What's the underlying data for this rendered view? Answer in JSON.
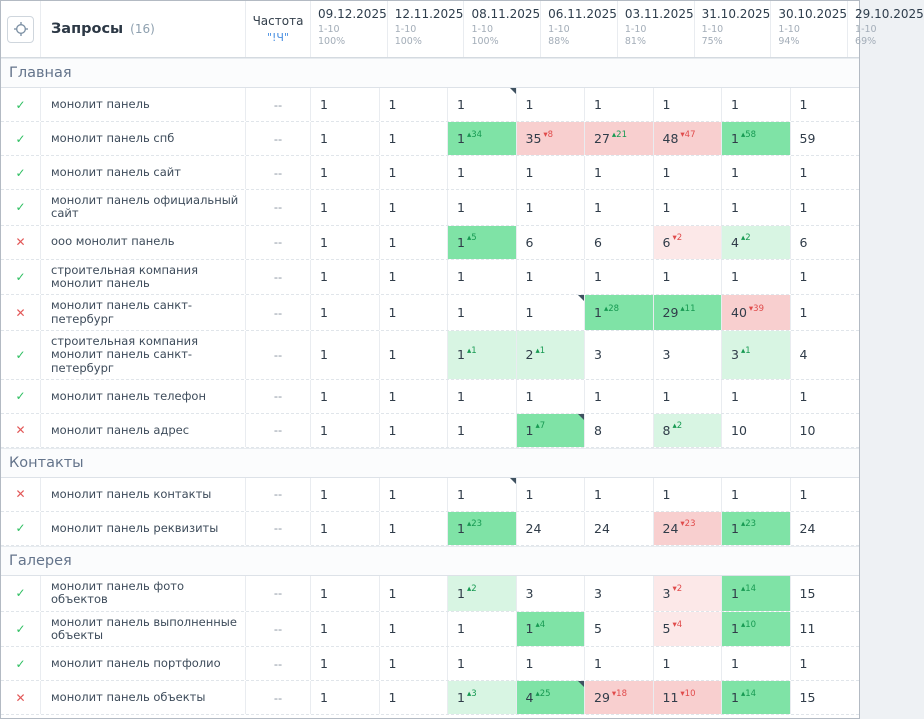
{
  "header": {
    "queries_label": "Запросы",
    "queries_count": "(16)",
    "frequency_label": "Частота",
    "frequency_filter": "\"!Ч\"",
    "dates": [
      {
        "date": "09.12.2025",
        "range": "1-10",
        "percent": "100%"
      },
      {
        "date": "12.11.2025",
        "range": "1-10",
        "percent": "100%"
      },
      {
        "date": "08.11.2025",
        "range": "1-10",
        "percent": "100%"
      },
      {
        "date": "06.11.2025",
        "range": "1-10",
        "percent": "88%"
      },
      {
        "date": "03.11.2025",
        "range": "1-10",
        "percent": "81%"
      },
      {
        "date": "31.10.2025",
        "range": "1-10",
        "percent": "75%"
      },
      {
        "date": "30.10.2025",
        "range": "1-10",
        "percent": "94%"
      },
      {
        "date": "29.10.2025",
        "range": "1-10",
        "percent": "69%"
      }
    ]
  },
  "icons": {
    "ok_glyph": "✓",
    "fail_glyph": "✕",
    "target_icon": "crosshair-target"
  },
  "colors": {
    "positive_bg": "#7fe3a6",
    "positive_bg_light": "#d8f5e3",
    "negative_bg": "#f8cfcf",
    "negative_bg_light": "#fce8e8",
    "delta_up": "#179a52",
    "delta_down": "#e04b4b",
    "status_ok": "#2fbf62",
    "status_fail": "#e25757",
    "accent_blue": "#4a90e2"
  },
  "sections": [
    {
      "title": "Главная",
      "rows": [
        {
          "status": "ok",
          "query": "монолит панель",
          "frequency": "--",
          "cells": [
            {
              "v": "1"
            },
            {
              "v": "1"
            },
            {
              "v": "1",
              "m": true
            },
            {
              "v": "1"
            },
            {
              "v": "1"
            },
            {
              "v": "1"
            },
            {
              "v": "1"
            },
            {
              "v": "1"
            }
          ]
        },
        {
          "status": "ok",
          "query": "монолит панель спб",
          "frequency": "--",
          "cells": [
            {
              "v": "1"
            },
            {
              "v": "1"
            },
            {
              "v": "1",
              "d": "+34",
              "bg": "green"
            },
            {
              "v": "35",
              "d": "-8",
              "bg": "pink"
            },
            {
              "v": "27",
              "d": "+21",
              "bg": "pink"
            },
            {
              "v": "48",
              "d": "-47",
              "bg": "pink"
            },
            {
              "v": "1",
              "d": "+58",
              "bg": "green"
            },
            {
              "v": "59"
            }
          ]
        },
        {
          "status": "ok",
          "query": "монолит панель сайт",
          "frequency": "--",
          "cells": [
            {
              "v": "1"
            },
            {
              "v": "1"
            },
            {
              "v": "1"
            },
            {
              "v": "1"
            },
            {
              "v": "1"
            },
            {
              "v": "1"
            },
            {
              "v": "1"
            },
            {
              "v": "1"
            }
          ]
        },
        {
          "status": "ok",
          "query": "монолит панель официальный сайт",
          "frequency": "--",
          "cells": [
            {
              "v": "1"
            },
            {
              "v": "1"
            },
            {
              "v": "1"
            },
            {
              "v": "1"
            },
            {
              "v": "1"
            },
            {
              "v": "1"
            },
            {
              "v": "1"
            },
            {
              "v": "1"
            }
          ]
        },
        {
          "status": "fail",
          "query": "ооо монолит панель",
          "frequency": "--",
          "cells": [
            {
              "v": "1"
            },
            {
              "v": "1"
            },
            {
              "v": "1",
              "d": "+5",
              "bg": "green"
            },
            {
              "v": "6"
            },
            {
              "v": "6"
            },
            {
              "v": "6",
              "d": "-2",
              "bg": "pink-light"
            },
            {
              "v": "4",
              "d": "+2",
              "bg": "green-light"
            },
            {
              "v": "6"
            }
          ]
        },
        {
          "status": "ok",
          "query": "строительная компания монолит панель",
          "frequency": "--",
          "cells": [
            {
              "v": "1"
            },
            {
              "v": "1"
            },
            {
              "v": "1"
            },
            {
              "v": "1"
            },
            {
              "v": "1"
            },
            {
              "v": "1"
            },
            {
              "v": "1"
            },
            {
              "v": "1"
            }
          ]
        },
        {
          "status": "fail",
          "query": "монолит панель санкт-петербург",
          "frequency": "--",
          "cells": [
            {
              "v": "1"
            },
            {
              "v": "1"
            },
            {
              "v": "1"
            },
            {
              "v": "1",
              "m": true
            },
            {
              "v": "1",
              "d": "+28",
              "bg": "green"
            },
            {
              "v": "29",
              "d": "+11",
              "bg": "green"
            },
            {
              "v": "40",
              "d": "-39",
              "bg": "pink"
            },
            {
              "v": "1"
            }
          ]
        },
        {
          "status": "ok",
          "query": "строительная компания монолит панель санкт-петербург",
          "frequency": "--",
          "cells": [
            {
              "v": "1"
            },
            {
              "v": "1"
            },
            {
              "v": "1",
              "d": "+1",
              "bg": "green-light"
            },
            {
              "v": "2",
              "d": "+1",
              "bg": "green-light"
            },
            {
              "v": "3"
            },
            {
              "v": "3"
            },
            {
              "v": "3",
              "d": "+1",
              "bg": "green-light"
            },
            {
              "v": "4"
            }
          ]
        },
        {
          "status": "ok",
          "query": "монолит панель телефон",
          "frequency": "--",
          "cells": [
            {
              "v": "1"
            },
            {
              "v": "1"
            },
            {
              "v": "1"
            },
            {
              "v": "1"
            },
            {
              "v": "1"
            },
            {
              "v": "1"
            },
            {
              "v": "1"
            },
            {
              "v": "1"
            }
          ]
        },
        {
          "status": "fail",
          "query": "монолит панель адрес",
          "frequency": "--",
          "cells": [
            {
              "v": "1"
            },
            {
              "v": "1"
            },
            {
              "v": "1"
            },
            {
              "v": "1",
              "d": "+7",
              "bg": "green",
              "m": true
            },
            {
              "v": "8"
            },
            {
              "v": "8",
              "d": "+2",
              "bg": "green-light"
            },
            {
              "v": "10"
            },
            {
              "v": "10"
            }
          ]
        }
      ]
    },
    {
      "title": "Контакты",
      "rows": [
        {
          "status": "fail",
          "query": "монолит панель контакты",
          "frequency": "--",
          "cells": [
            {
              "v": "1"
            },
            {
              "v": "1"
            },
            {
              "v": "1",
              "m": true
            },
            {
              "v": "1"
            },
            {
              "v": "1"
            },
            {
              "v": "1"
            },
            {
              "v": "1"
            },
            {
              "v": "1"
            }
          ]
        },
        {
          "status": "ok",
          "query": "монолит панель реквизиты",
          "frequency": "--",
          "cells": [
            {
              "v": "1"
            },
            {
              "v": "1"
            },
            {
              "v": "1",
              "d": "+23",
              "bg": "green"
            },
            {
              "v": "24"
            },
            {
              "v": "24"
            },
            {
              "v": "24",
              "d": "-23",
              "bg": "pink"
            },
            {
              "v": "1",
              "d": "+23",
              "bg": "green"
            },
            {
              "v": "24"
            }
          ]
        }
      ]
    },
    {
      "title": "Галерея",
      "rows": [
        {
          "status": "ok",
          "query": "монолит панель фото объектов",
          "frequency": "--",
          "cells": [
            {
              "v": "1"
            },
            {
              "v": "1"
            },
            {
              "v": "1",
              "d": "+2",
              "bg": "green-light"
            },
            {
              "v": "3"
            },
            {
              "v": "3"
            },
            {
              "v": "3",
              "d": "-2",
              "bg": "pink-light"
            },
            {
              "v": "1",
              "d": "+14",
              "bg": "green"
            },
            {
              "v": "15"
            }
          ]
        },
        {
          "status": "ok",
          "query": "монолит панель выполненные объекты",
          "frequency": "--",
          "cells": [
            {
              "v": "1"
            },
            {
              "v": "1"
            },
            {
              "v": "1"
            },
            {
              "v": "1",
              "d": "+4",
              "bg": "green"
            },
            {
              "v": "5"
            },
            {
              "v": "5",
              "d": "-4",
              "bg": "pink-light"
            },
            {
              "v": "1",
              "d": "+10",
              "bg": "green"
            },
            {
              "v": "11"
            }
          ]
        },
        {
          "status": "ok",
          "query": "монолит панель портфолио",
          "frequency": "--",
          "cells": [
            {
              "v": "1"
            },
            {
              "v": "1"
            },
            {
              "v": "1"
            },
            {
              "v": "1"
            },
            {
              "v": "1"
            },
            {
              "v": "1"
            },
            {
              "v": "1"
            },
            {
              "v": "1"
            }
          ]
        },
        {
          "status": "fail",
          "query": "монолит панель объекты",
          "frequency": "--",
          "cells": [
            {
              "v": "1"
            },
            {
              "v": "1"
            },
            {
              "v": "1",
              "d": "+3",
              "bg": "green-light"
            },
            {
              "v": "4",
              "d": "+25",
              "bg": "green",
              "m": true
            },
            {
              "v": "29",
              "d": "-18",
              "bg": "pink"
            },
            {
              "v": "11",
              "d": "-10",
              "bg": "pink"
            },
            {
              "v": "1",
              "d": "+14",
              "bg": "green"
            },
            {
              "v": "15"
            }
          ]
        }
      ]
    }
  ]
}
